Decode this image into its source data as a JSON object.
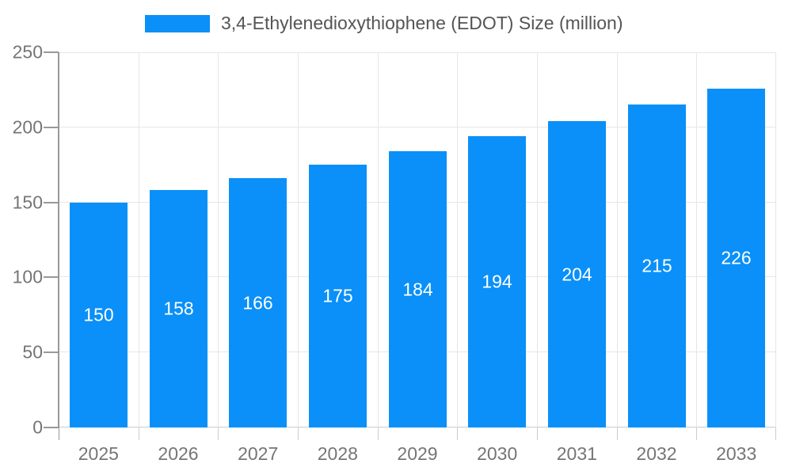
{
  "legend": {
    "label": "3,4-Ethylenedioxythiophene (EDOT) Size (million)"
  },
  "colors": {
    "bar": "#0a90f8",
    "grid": "#e6e6e6",
    "axis": "#999999",
    "axis_label": "#757575",
    "legend_text": "#555555",
    "value_label": "#ffffff"
  },
  "chart_data": {
    "type": "bar",
    "title": "3,4-Ethylenedioxythiophene (EDOT) Size (million)",
    "categories": [
      "2025",
      "2026",
      "2027",
      "2028",
      "2029",
      "2030",
      "2031",
      "2032",
      "2033"
    ],
    "values": [
      150,
      158,
      166,
      175,
      184,
      194,
      204,
      215,
      226
    ],
    "xlabel": "",
    "ylabel": "",
    "ylim": [
      0,
      250
    ],
    "yticks": [
      0,
      50,
      100,
      150,
      200,
      250
    ],
    "grid": true,
    "legend_position": "top",
    "value_labels": "centered-white-inside-bars"
  }
}
